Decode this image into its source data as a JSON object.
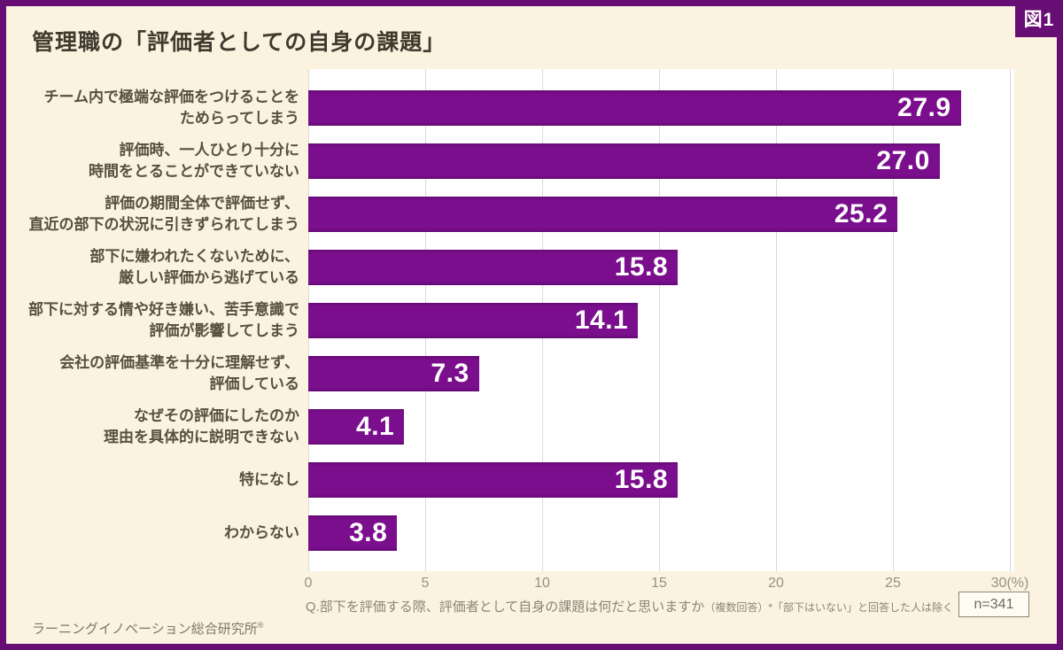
{
  "figure_tag": "図1",
  "title": "管理職の「評価者としての自身の課題」",
  "footer": {
    "question": "Q.部下を評価する際、評価者として自身の課題は何だと思いますか",
    "question_note": "（複数回答）*「部下はいない」と回答した人は除く",
    "sample_size": "n=341",
    "organization": "ラーニングイノベーション総合研究所",
    "registered_mark": "®"
  },
  "colors": {
    "frame": "#670e74",
    "bar": "#7a0e8c",
    "card_bg": "#fbf3e0",
    "plot_bg": "#ffffff",
    "gridline": "#d9d9d9",
    "value_label": "#ffffff"
  },
  "chart_data": {
    "type": "bar",
    "orientation": "horizontal",
    "title": "管理職の「評価者としての自身の課題」",
    "categories": [
      "チーム内で極端な評価をつけることをためらってしまう",
      "評価時、一人ひとり十分に時間をとることができていない",
      "評価の期間全体で評価せず、直近の部下の状況に引きずられてしまう",
      "部下に嫌われたくないために、厳しい評価から逃げている",
      "部下に対する情や好き嫌い、苦手意識で評価が影響してしまう",
      "会社の評価基準を十分に理解せず、評価している",
      "なぜその評価にしたのか理由を具体的に説明できない",
      "特になし",
      "わからない"
    ],
    "category_lines": [
      [
        "チーム内で極端な評価をつけることを",
        "ためらってしまう"
      ],
      [
        "評価時、一人ひとり十分に",
        "時間をとることができていない"
      ],
      [
        "評価の期間全体で評価せず、",
        "直近の部下の状況に引きずられてしまう"
      ],
      [
        "部下に嫌われたくないために、",
        "厳しい評価から逃げている"
      ],
      [
        "部下に対する情や好き嫌い、苦手意識で",
        "評価が影響してしまう"
      ],
      [
        "会社の評価基準を十分に理解せず、",
        "評価している"
      ],
      [
        "なぜその評価にしたのか",
        "理由を具体的に説明できない"
      ],
      [
        "特になし"
      ],
      [
        "わからない"
      ]
    ],
    "values": [
      27.9,
      27.0,
      25.2,
      15.8,
      14.1,
      7.3,
      4.1,
      15.8,
      3.8
    ],
    "xlabel": "(%)",
    "xlim": [
      0,
      30
    ],
    "xticks": [
      0,
      5,
      10,
      15,
      20,
      25,
      30
    ],
    "xtick_labels": [
      "0",
      "5",
      "10",
      "15",
      "20",
      "25",
      "30(%)"
    ],
    "grid": true,
    "legend": false
  }
}
